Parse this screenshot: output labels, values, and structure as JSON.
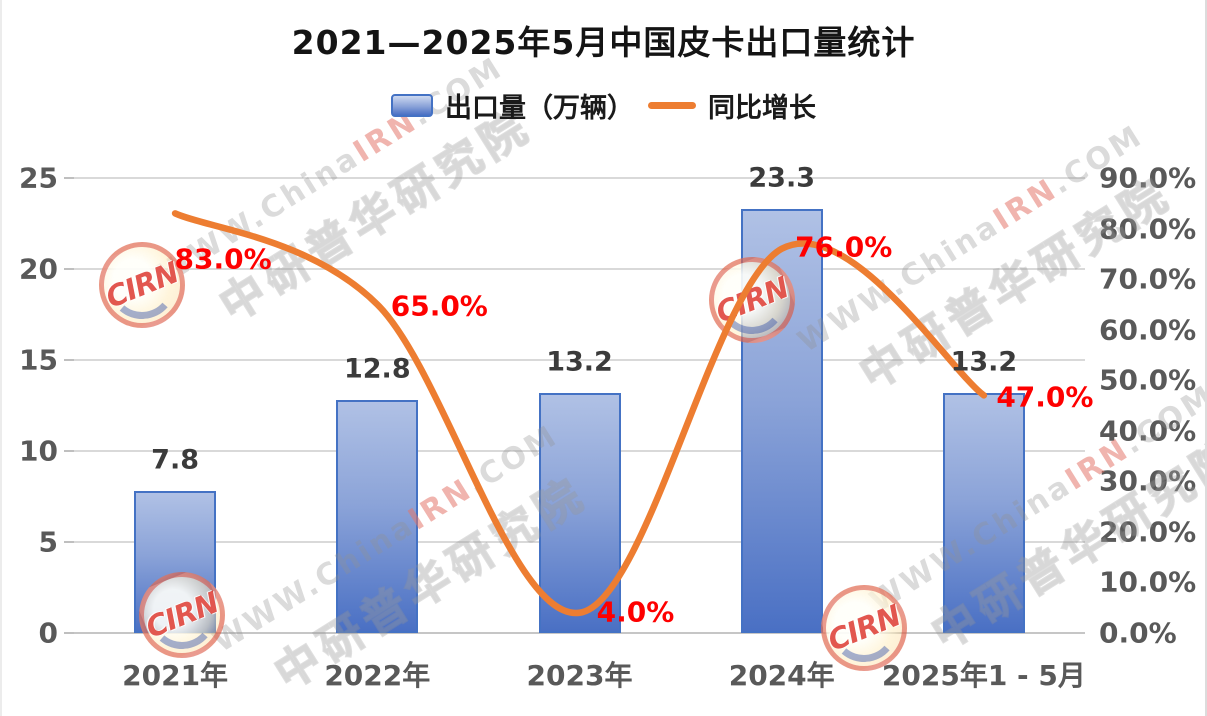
{
  "title": "2021—2025年5月中国皮卡出口量统计",
  "legend": [
    {
      "label": "出口量（万辆）",
      "type": "bar"
    },
    {
      "label": "同比增长",
      "type": "line"
    }
  ],
  "chart_data": {
    "type": "bar+line combo",
    "categories": [
      "2021年",
      "2022年",
      "2023年",
      "2024年",
      "2025年1 - 5月"
    ],
    "series": [
      {
        "name": "出口量（万辆）",
        "type": "bar",
        "axis": "left",
        "values": [
          7.8,
          12.8,
          13.2,
          23.3,
          13.2
        ],
        "labels": [
          "7.8",
          "12.8",
          "13.2",
          "23.3",
          "13.2"
        ],
        "color": "#4472C4"
      },
      {
        "name": "同比增长",
        "type": "line",
        "axis": "right",
        "values": [
          83.0,
          65.0,
          4.0,
          76.0,
          47.0
        ],
        "labels": [
          "83.0%",
          "65.0%",
          "4.0%",
          "76.0%",
          "47.0%"
        ],
        "color": "#ED7D31",
        "label_color": "#FE0000"
      }
    ],
    "left_axis": {
      "min": 0,
      "max": 25,
      "ticks": [
        "25",
        "20",
        "15",
        "10",
        "5",
        "0"
      ]
    },
    "right_axis": {
      "min": 0,
      "max": 90,
      "ticks": [
        "90.0%",
        "80.0%",
        "70.0%",
        "60.0%",
        "50.0%",
        "40.0%",
        "30.0%",
        "20.0%",
        "10.0%",
        "0.0%"
      ]
    },
    "grid": true,
    "legend_position": "top"
  },
  "watermark": {
    "latin_prefix": "WWW.China",
    "latin_highlight": "IRN",
    "latin_suffix": ".COM",
    "cjk": "中研普华研究院",
    "logo_text": "CIRN"
  },
  "colors": {
    "bar_fill_top": "#B0C1E5",
    "bar_fill_bottom": "#4A70C4",
    "bar_border": "#4472C4",
    "line": "#ED7D31",
    "percent_label": "#FE0000",
    "axis_text": "#595959",
    "bar_label_text": "#3B3B3B",
    "gridline": "#D9D9D9"
  }
}
